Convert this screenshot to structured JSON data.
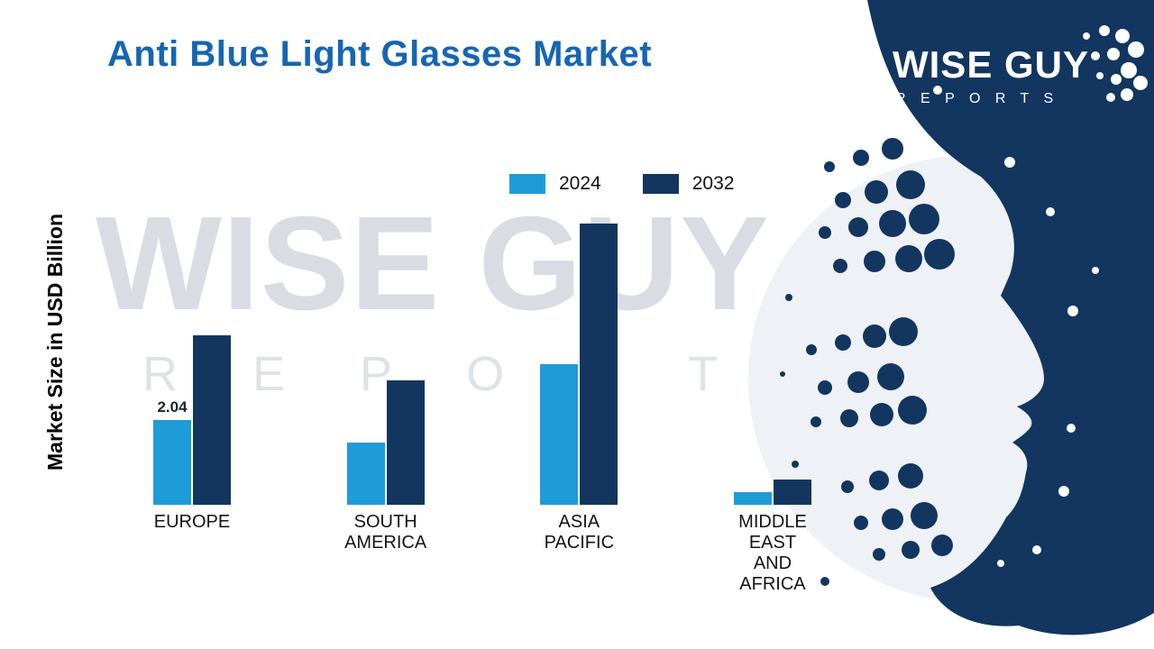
{
  "title": {
    "text": "Anti Blue Light Glasses Market",
    "color": "#1766b2"
  },
  "y_axis": {
    "label": "Market Size in USD Billion"
  },
  "watermark": {
    "line1": "WISE GUY",
    "line2": "R E P O R T S"
  },
  "brand": {
    "name": "WISE GUY",
    "sub": "R E P O R T S",
    "panel_color": "#12365f"
  },
  "chart_data": {
    "type": "bar",
    "title": "Anti Blue Light Glasses Market",
    "ylabel": "Market Size in USD Billion",
    "units": "USD Billion",
    "categories": [
      "EUROPE",
      "SOUTH\nAMERICA",
      "ASIA\nPACIFIC",
      "MIDDLE\nEAST\nAND\nAFRICA"
    ],
    "series": [
      {
        "name": "2024",
        "color": "#1e9cd8",
        "values": [
          2.04,
          1.5,
          3.4,
          0.3
        ]
      },
      {
        "name": "2032",
        "color": "#12365f",
        "values": [
          4.1,
          3.0,
          6.8,
          0.6
        ]
      }
    ],
    "annotations": [
      {
        "series": "2024",
        "category_index": 0,
        "text": "2.04"
      }
    ],
    "ylim": [
      0,
      7.2
    ],
    "grid": false,
    "legend_position": "top"
  }
}
